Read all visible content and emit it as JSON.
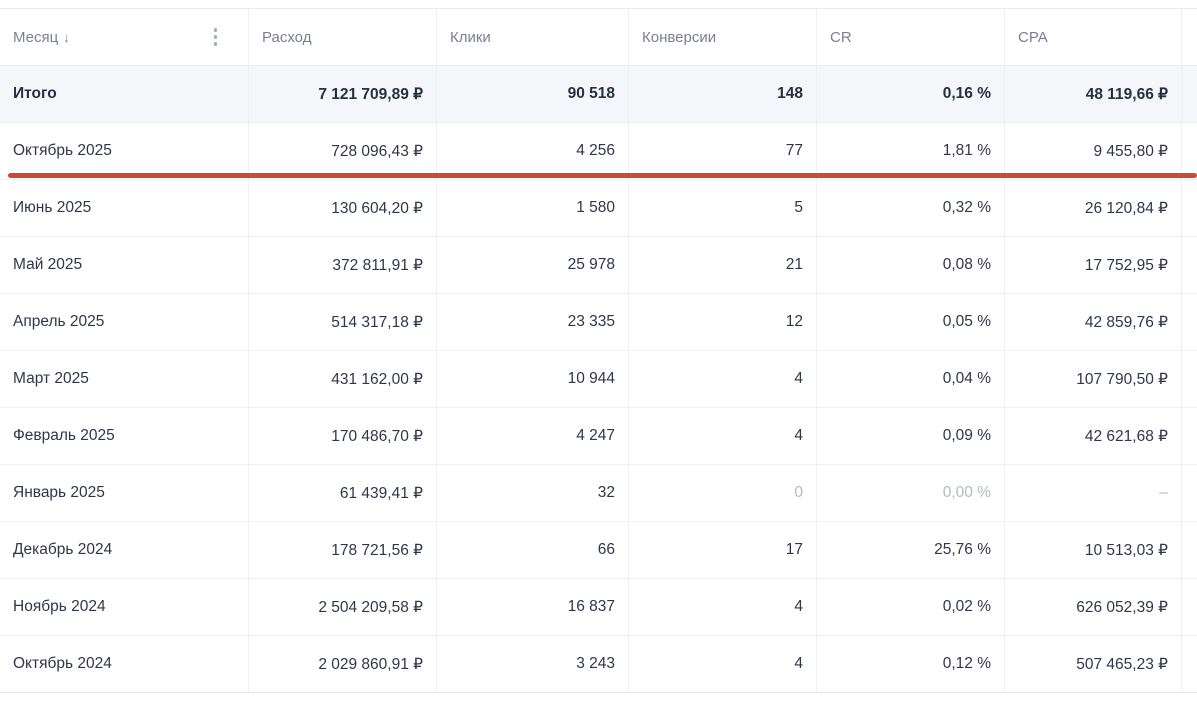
{
  "table": {
    "columns": [
      {
        "label": "Месяц",
        "align": "left",
        "sorted": true
      },
      {
        "label": "Расход",
        "align": "right"
      },
      {
        "label": "Клики",
        "align": "right"
      },
      {
        "label": "Конверсии",
        "align": "right"
      },
      {
        "label": "CR",
        "align": "right"
      },
      {
        "label": "CPA",
        "align": "right"
      }
    ],
    "sort": {
      "column": "Месяц",
      "indicator": "↓",
      "direction": "desc"
    },
    "icons": {
      "column_menu": "kebab-vertical-dots-icon",
      "sort": "arrow-down-icon"
    },
    "total_row": {
      "month": "Итого",
      "spend": "7 121 709,89 ₽",
      "clicks": "90 518",
      "conversions": "148",
      "cr": "0,16 %",
      "cpa": "48 119,66 ₽"
    },
    "rows": [
      {
        "month": "Октябрь 2025",
        "spend": "728 096,43 ₽",
        "clicks": "4 256",
        "conversions": "77",
        "cr": "1,81 %",
        "cpa": "9 455,80 ₽",
        "highlighted": true
      },
      {
        "month": "Июнь 2025",
        "spend": "130 604,20 ₽",
        "clicks": "1 580",
        "conversions": "5",
        "cr": "0,32 %",
        "cpa": "26 120,84 ₽"
      },
      {
        "month": "Май 2025",
        "spend": "372 811,91 ₽",
        "clicks": "25 978",
        "conversions": "21",
        "cr": "0,08 %",
        "cpa": "17 752,95 ₽"
      },
      {
        "month": "Апрель 2025",
        "spend": "514 317,18 ₽",
        "clicks": "23 335",
        "conversions": "12",
        "cr": "0,05 %",
        "cpa": "42 859,76 ₽"
      },
      {
        "month": "Март 2025",
        "spend": "431 162,00 ₽",
        "clicks": "10 944",
        "conversions": "4",
        "cr": "0,04 %",
        "cpa": "107 790,50 ₽"
      },
      {
        "month": "Февраль 2025",
        "spend": "170 486,70 ₽",
        "clicks": "4 247",
        "conversions": "4",
        "cr": "0,09 %",
        "cpa": "42 621,68 ₽"
      },
      {
        "month": "Январь 2025",
        "spend": "61 439,41 ₽",
        "clicks": "32",
        "conversions": "0",
        "cr": "0,00 %",
        "cpa": "–",
        "muted_cells": [
          "conversions",
          "cr",
          "cpa"
        ]
      },
      {
        "month": "Декабрь 2024",
        "spend": "178 721,56 ₽",
        "clicks": "66",
        "conversions": "17",
        "cr": "25,76 %",
        "cpa": "10 513,03 ₽"
      },
      {
        "month": "Ноябрь 2024",
        "spend": "2 504 209,58 ₽",
        "clicks": "16 837",
        "conversions": "4",
        "cr": "0,02 %",
        "cpa": "626 052,39 ₽"
      },
      {
        "month": "Октябрь 2024",
        "spend": "2 029 860,91 ₽",
        "clicks": "3 243",
        "conversions": "4",
        "cr": "0,12 %",
        "cpa": "507 465,23 ₽"
      }
    ],
    "colors": {
      "highlight_underline": "#cb4a3a",
      "total_row_bg": "#f4f6fa",
      "header_text": "#778093",
      "body_text": "#2e3649",
      "muted_text": "#b4b9c6",
      "grid_line": "#eef0f4"
    }
  }
}
